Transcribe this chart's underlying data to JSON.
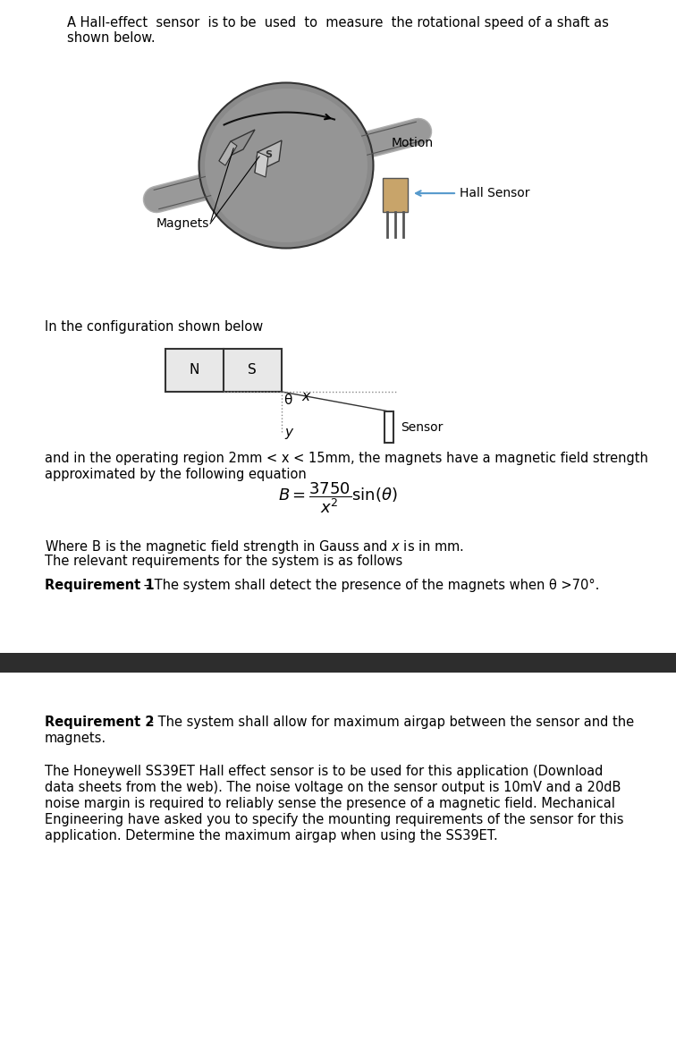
{
  "bg_color": "#ffffff",
  "text_color": "#000000",
  "divider_color": "#2d2d2d",
  "arrow_color": "#5599cc",
  "disk_color": "#888888",
  "disk_edge": "#333333",
  "shaft_color": "#aaaaaa",
  "magnet_color": "#aaaaaa",
  "sensor_body_color": "#c8a46a",
  "title_line1": "A Hall-effect  sensor  is to be  used  to  measure  the rotational speed of a shaft as",
  "title_line2": "shown below.",
  "motion_label": "Motion",
  "hall_sensor_label": "Hall Sensor",
  "magnets_label": "Magnets",
  "config_text": "In the configuration shown below",
  "N_label": "N",
  "S_label": "S",
  "theta_label": "θ",
  "x_label": "x",
  "y_label": "y",
  "sensor_label": "Sensor",
  "oper_line1": "and in the operating region 2mm < x < 15mm, the magnets have a magnetic field strength",
  "oper_line2": "approximated by the following equation",
  "where_line1": "Where B is the magnetic field strength in Gauss and x is in mm.",
  "where_line2": "The relevant requirements for the system is as follows",
  "req1_bold": "Requirement 1",
  "req1_rest": " – The system shall detect the presence of the magnets when θ >70°.",
  "req2_bold": "Requirement 2",
  "req2_rest": " – The system shall allow for maximum airgap between the sensor and the",
  "req2_line2": "magnets.",
  "honey_lines": [
    "The Honeywell SS39ET Hall effect sensor is to be used for this application (Download",
    "data sheets from the web). The noise voltage on the sensor output is 10mV and a 20dB",
    "noise margin is required to reliably sense the presence of a magnetic field. Mechanical",
    "Engineering have asked you to specify the mounting requirements of the sensor for this",
    "application. Determine the maximum airgap when using the SS39ET."
  ],
  "body_fs": 10.5,
  "small_fs": 10,
  "eq_fs": 13
}
